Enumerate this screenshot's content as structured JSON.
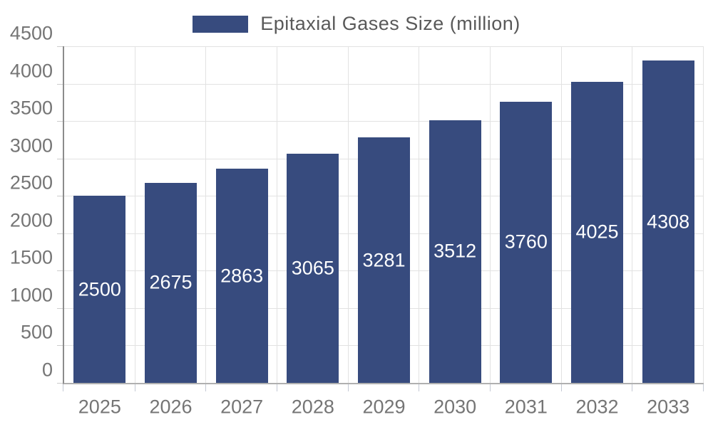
{
  "legend": {
    "label": "Epitaxial Gases Size (million)"
  },
  "chart_data": {
    "type": "bar",
    "title": "Epitaxial Gases Size (million)",
    "categories": [
      "2025",
      "2026",
      "2027",
      "2028",
      "2029",
      "2030",
      "2031",
      "2032",
      "2033"
    ],
    "values": [
      2500,
      2675,
      2863,
      3065,
      3281,
      3512,
      3760,
      4025,
      4308
    ],
    "xlabel": "",
    "ylabel": "",
    "ylim": [
      0,
      4500
    ],
    "yticks": [
      0,
      500,
      1000,
      1500,
      2000,
      2500,
      3000,
      3500,
      4000,
      4500
    ],
    "grid": true,
    "legend_position": "top-center",
    "bar_label_position": "inside-center",
    "colors": {
      "bar": "#374B7E",
      "bar_label": "#FFFFFF",
      "y_axis_line": "#8C8C8C",
      "x_axis_line": "#B0B0B0",
      "gridline": "#E2E2E2",
      "tick_label": "#757575",
      "legend_text": "#595959",
      "background": "#FFFFFF"
    }
  }
}
